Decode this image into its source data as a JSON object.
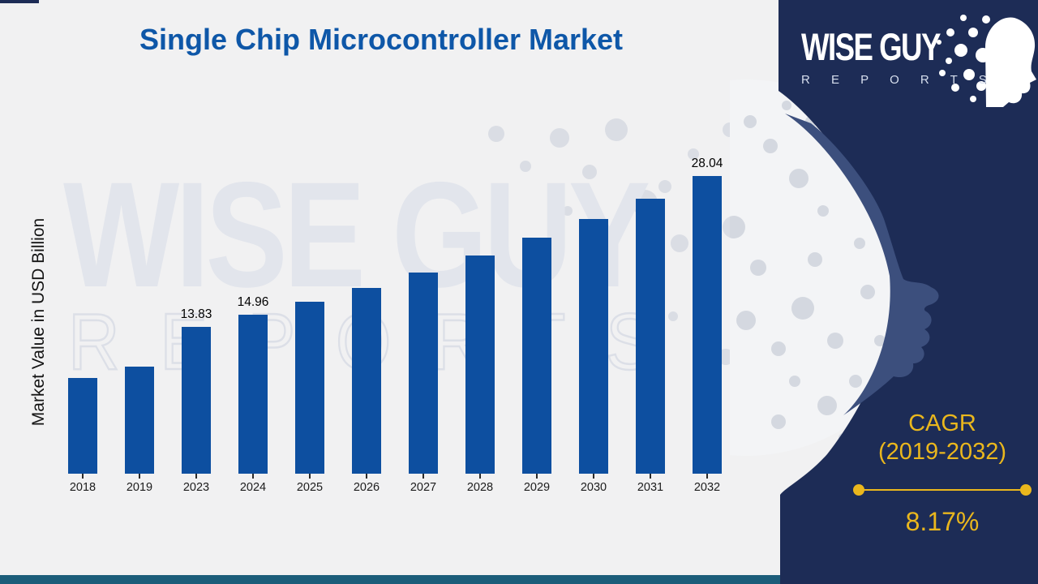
{
  "header": {
    "title": "Single Chip Microcontroller Market"
  },
  "logo": {
    "line1": "WISE GUY",
    "line2": "R E P O R T S"
  },
  "watermark": {
    "line1": "WISE GUY",
    "line2": "REPORTS"
  },
  "cagr": {
    "label": "CAGR",
    "range": "(2019-2032)",
    "value": "8.17%"
  },
  "colors": {
    "bar_blue": "#0d4fa0",
    "title_blue": "#0e57a8",
    "panel_navy": "#1d2c56",
    "accent_gold": "#eab71d",
    "teal_strip": "#1c5d7a",
    "background": "#f1f1f2",
    "face_blue": "#3c4f7d"
  },
  "chart_data": {
    "type": "bar",
    "title": "Single Chip Microcontroller Market",
    "xlabel": "",
    "ylabel": "Market Value in USD Billion",
    "categories": [
      "2018",
      "2019",
      "2023",
      "2024",
      "2025",
      "2026",
      "2027",
      "2028",
      "2029",
      "2030",
      "2031",
      "2032"
    ],
    "values": [
      9.0,
      10.1,
      13.83,
      14.96,
      16.2,
      17.5,
      18.9,
      20.5,
      22.2,
      24.0,
      25.9,
      28.04
    ],
    "bar_labels": [
      "",
      "",
      "13.83",
      "14.96",
      "",
      "",
      "",
      "",
      "",
      "",
      "",
      "28.04"
    ],
    "ylim": [
      0,
      30
    ],
    "grid": false,
    "legend": "none",
    "bar_color": "#0d4fa0"
  }
}
